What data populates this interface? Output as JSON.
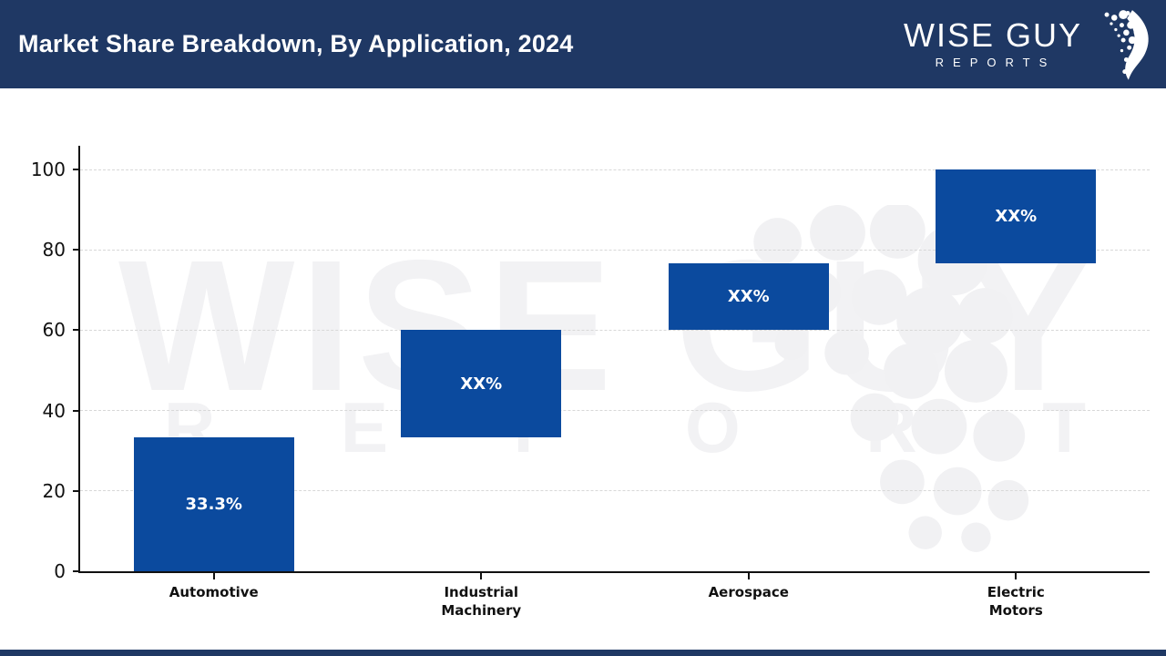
{
  "header": {
    "title": "Market Share Breakdown, By Application, 2024",
    "logo": {
      "line1": "WISE GUY",
      "line2": "REPORTS"
    }
  },
  "watermark": {
    "line1": "WISE GUY",
    "line2": "R E P O R T S"
  },
  "colors": {
    "header_bg": "#1f3864",
    "footer_bg": "#1f3864",
    "bar": "#0b4a9e",
    "grid": "#d8d8d8",
    "axis": "#111111",
    "bar_label_text": "#ffffff",
    "watermark": "#f2f2f4"
  },
  "chart_data": {
    "type": "bar",
    "subtype": "floating-waterfall",
    "title": "Market Share Breakdown, By Application, 2024",
    "categories": [
      "Automotive",
      "Industrial Machinery",
      "Aerospace",
      "Electric Motors"
    ],
    "series": [
      {
        "name": "Market Share",
        "segments": [
          {
            "category": "Automotive",
            "start": 0,
            "end": 33.3,
            "label": "33.3%"
          },
          {
            "category": "Industrial Machinery",
            "start": 33.3,
            "end": 60,
            "label": "XX%"
          },
          {
            "category": "Aerospace",
            "start": 60,
            "end": 76.7,
            "label": "XX%"
          },
          {
            "category": "Electric Motors",
            "start": 76.7,
            "end": 100,
            "label": "XX%"
          }
        ]
      }
    ],
    "ylim": [
      0,
      100
    ],
    "yticks": [
      0,
      20,
      40,
      60,
      80,
      100
    ],
    "xlabel": "",
    "ylabel": "",
    "grid": "horizontal-dashed",
    "legend": "none"
  }
}
